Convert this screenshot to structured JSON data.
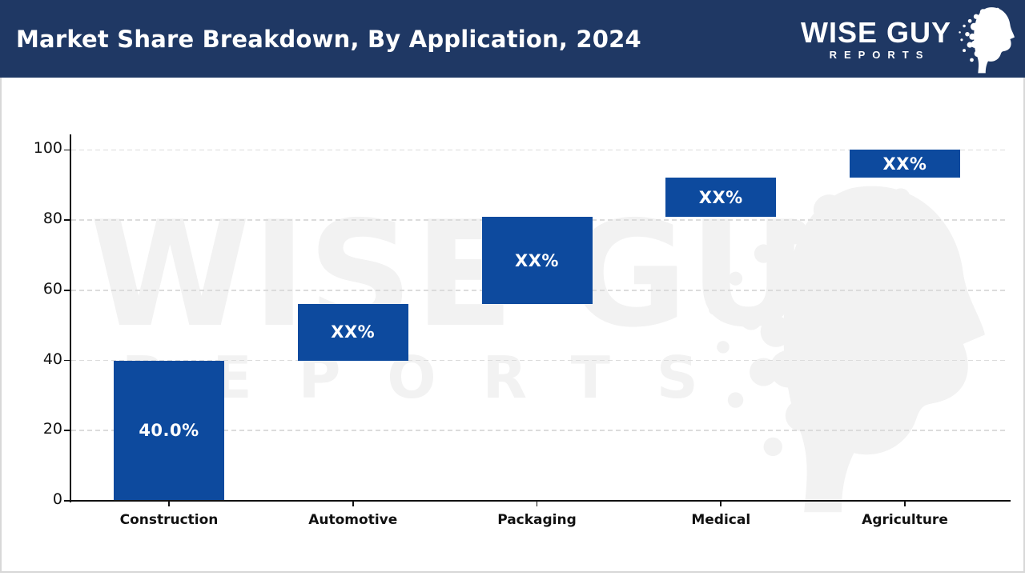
{
  "header": {
    "title": "Market Share Breakdown, By Application, 2024",
    "logo": {
      "line1": "WISE GUY",
      "line2": "REPORTS"
    }
  },
  "watermark": {
    "line1": "WISE GUY",
    "line2": "REPORTS"
  },
  "colors": {
    "header_bg": "#1f3864",
    "bar": "#0d4a9e",
    "grid": "#dcdcdc",
    "axis": "#111111",
    "bar_label_text": "#ffffff",
    "watermark": "#f2f2f2"
  },
  "chart_data": {
    "type": "bar",
    "subtype": "waterfall",
    "title": "Market Share Breakdown, By Application, 2024",
    "categories": [
      "Construction",
      "Automotive",
      "Packaging",
      "Medical",
      "Agriculture"
    ],
    "values": [
      40,
      16,
      25,
      11,
      8
    ],
    "cumulative_start": [
      0,
      40,
      56,
      81,
      92
    ],
    "cumulative_end": [
      40,
      56,
      81,
      92,
      100
    ],
    "bar_labels": [
      "40.0%",
      "XX%",
      "XX%",
      "XX%",
      "XX%"
    ],
    "xlabel": "",
    "ylabel": "",
    "ylim": [
      0,
      100
    ],
    "yticks": [
      0,
      20,
      40,
      60,
      80,
      100
    ],
    "grid": true,
    "grid_style": "dashed",
    "legend": false
  }
}
